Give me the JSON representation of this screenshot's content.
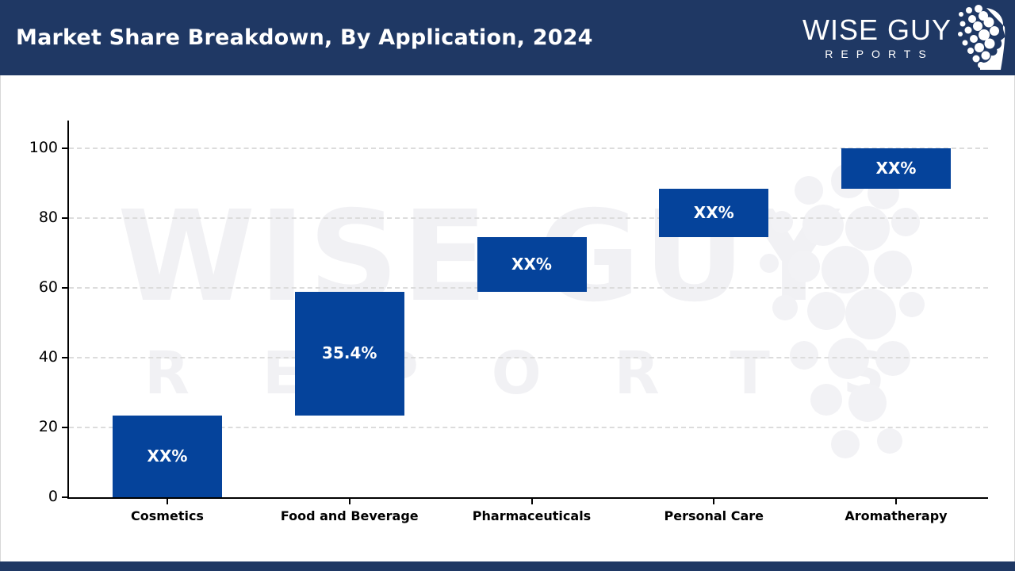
{
  "header": {
    "title": "Market Share Breakdown, By Application, 2024",
    "logo": {
      "name": "WISE GUY",
      "sub": "REPORTS"
    }
  },
  "watermark": {
    "line1": "WISE GUY",
    "line2": "REPORTS"
  },
  "colors": {
    "header_bg": "#1f3864",
    "footer_bg": "#1f3864",
    "bar": "#05439b",
    "bar_label": "#ffffff",
    "gridline": "#dcdcdc",
    "axis": "#000000",
    "watermark": "#f1f1f4"
  },
  "chart_data": {
    "type": "bar",
    "subtype": "waterfall",
    "title": "Market Share Breakdown, By Application, 2024",
    "categories": [
      "Cosmetics",
      "Food and Beverage",
      "Pharmaceuticals",
      "Personal Care",
      "Aromatherapy"
    ],
    "segments": [
      {
        "category": "Cosmetics",
        "start": 0,
        "end": 23.5,
        "label": "XX%"
      },
      {
        "category": "Food and Beverage",
        "start": 23.5,
        "end": 58.9,
        "label": "35.4%"
      },
      {
        "category": "Pharmaceuticals",
        "start": 58.9,
        "end": 74.6,
        "label": "XX%"
      },
      {
        "category": "Personal Care",
        "start": 74.6,
        "end": 88.4,
        "label": "XX%"
      },
      {
        "category": "Aromatherapy",
        "start": 88.4,
        "end": 100,
        "label": "XX%"
      }
    ],
    "y_ticks": [
      0,
      20,
      40,
      60,
      80,
      100
    ],
    "ylim": [
      0,
      108
    ],
    "xlabel": "",
    "ylabel": "",
    "grid": "horizontal-dashed",
    "legend": "none"
  }
}
